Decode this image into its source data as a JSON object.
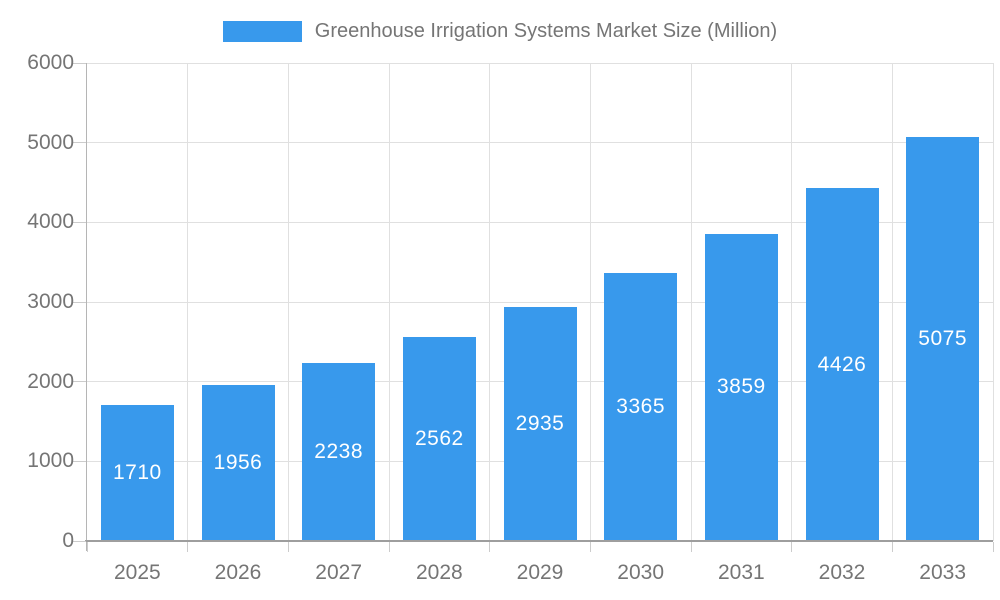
{
  "accent_color": "#3899EC",
  "text_color": "#757575",
  "grid_color": "#e0e0e0",
  "axis_color": "#9e9e9e",
  "tick_color": "#cccccc",
  "value_label_color": "#ffffff",
  "legend": {
    "label": "Greenhouse Irrigation Systems Market Size (Million)"
  },
  "chart_data": {
    "type": "bar",
    "title": "Greenhouse Irrigation Systems Market Size (Million)",
    "categories": [
      "2025",
      "2026",
      "2027",
      "2028",
      "2029",
      "2030",
      "2031",
      "2032",
      "2033"
    ],
    "values": [
      1710,
      1956,
      2238,
      2562,
      2935,
      3365,
      3859,
      4426,
      5075
    ],
    "series": [
      {
        "name": "Greenhouse Irrigation Systems Market Size (Million)",
        "values": [
          1710,
          1956,
          2238,
          2562,
          2935,
          3365,
          3859,
          4426,
          5075
        ]
      }
    ],
    "xlabel": "",
    "ylabel": "",
    "ylim": [
      0,
      6000
    ],
    "y_ticks": [
      0,
      1000,
      2000,
      3000,
      4000,
      5000,
      6000
    ],
    "grid": "on",
    "legend_position": "top",
    "value_labels": "inside-center"
  }
}
